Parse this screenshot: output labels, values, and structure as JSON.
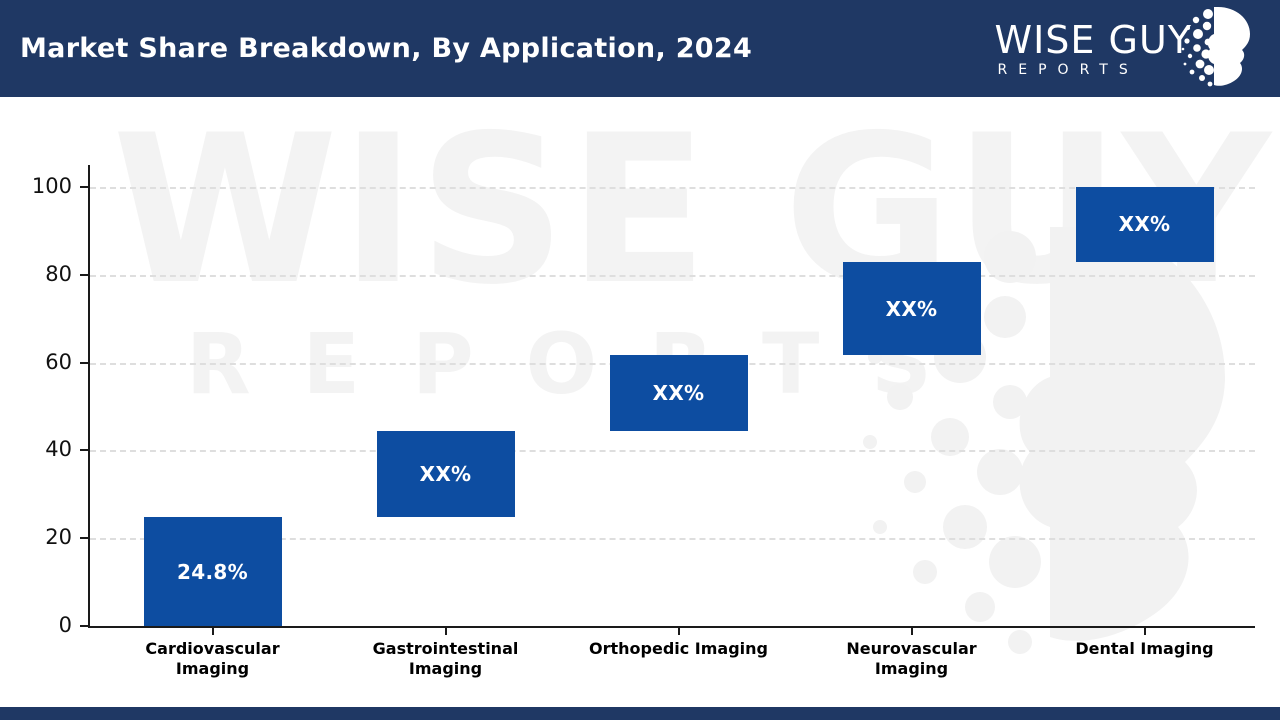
{
  "header": {
    "title": "Market Share Breakdown, By Application, 2024",
    "logo": {
      "line1": "WISE GUY",
      "line2": "REPORTS"
    }
  },
  "watermark": {
    "line1": "WISE GUY",
    "line2": "REPORTS"
  },
  "colors": {
    "header_bg": "#1f3864",
    "footer_bg": "#1f3864",
    "bar": "#0d4da1",
    "bar_label_text": "#ffffff",
    "axis": "#1a1a1a",
    "gridline": "#dedede",
    "watermark": "#f3f3f3",
    "title_text": "#ffffff",
    "tick_text": "#111111"
  },
  "chart_data": {
    "type": "bar",
    "subtype": "waterfall",
    "title": "Market Share Breakdown, By Application, 2024",
    "xlabel": "",
    "ylabel": "",
    "ylim": [
      0,
      105
    ],
    "yticks": [
      0,
      20,
      40,
      60,
      80,
      100
    ],
    "grid": "horizontal-dashed",
    "legend": "none",
    "categories": [
      {
        "name": "Cardiovascular Imaging",
        "lines": [
          "Cardiovascular",
          "Imaging"
        ]
      },
      {
        "name": "Gastrointestinal Imaging",
        "lines": [
          "Gastrointestinal",
          "Imaging"
        ]
      },
      {
        "name": "Orthopedic Imaging",
        "lines": [
          "Orthopedic Imaging"
        ]
      },
      {
        "name": "Neurovascular Imaging",
        "lines": [
          "Neurovascular",
          "Imaging"
        ]
      },
      {
        "name": "Dental Imaging",
        "lines": [
          "Dental Imaging"
        ]
      }
    ],
    "series": [
      {
        "name": "Market Share (%)",
        "segments": [
          {
            "category": "Cardiovascular Imaging",
            "start": 0,
            "end": 24.8,
            "label": "24.8%"
          },
          {
            "category": "Gastrointestinal Imaging",
            "start": 24.8,
            "end": 44.5,
            "label": "XX%"
          },
          {
            "category": "Orthopedic Imaging",
            "start": 44.5,
            "end": 61.7,
            "label": "XX%"
          },
          {
            "category": "Neurovascular Imaging",
            "start": 61.7,
            "end": 82.9,
            "label": "XX%"
          },
          {
            "category": "Dental Imaging",
            "start": 82.9,
            "end": 100,
            "label": "XX%"
          }
        ]
      }
    ]
  }
}
